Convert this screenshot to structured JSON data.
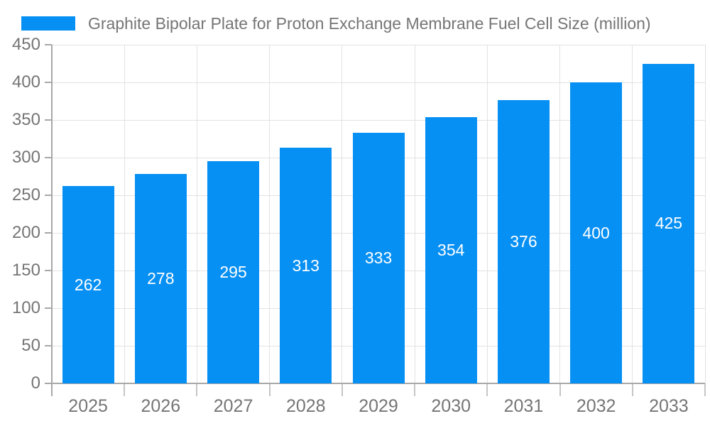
{
  "legend": {
    "series_label": "Graphite Bipolar Plate for Proton Exchange Membrane Fuel Cell Size (million)"
  },
  "colors": {
    "bar": "#0790f3",
    "title_text": "#757575",
    "tick_text": "#757575",
    "value_label_text": "#ffffff",
    "gridline": "#e2e2e2",
    "axis_line": "#a8a8a8",
    "tick_mark": "#c6c6c6",
    "background": "#ffffff"
  },
  "chart_data": {
    "type": "bar",
    "title": "Graphite Bipolar Plate for Proton Exchange Membrane Fuel Cell Size (million)",
    "xlabel": "",
    "ylabel": "",
    "categories": [
      "2025",
      "2026",
      "2027",
      "2028",
      "2029",
      "2030",
      "2031",
      "2032",
      "2033"
    ],
    "values": [
      262,
      278,
      295,
      313,
      333,
      354,
      376,
      400,
      425
    ],
    "series_name": "Graphite Bipolar Plate for Proton Exchange Membrane Fuel Cell Size (million)",
    "ylim": [
      0,
      450
    ],
    "y_ticks": [
      0,
      50,
      100,
      150,
      200,
      250,
      300,
      350,
      400,
      450
    ],
    "grid": true,
    "legend_position": "top-left",
    "value_label_style": "white, inside bar, centered"
  }
}
